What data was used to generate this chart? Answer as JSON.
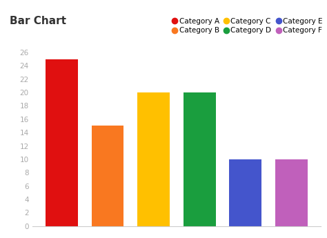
{
  "title": "Bar Chart",
  "categories": [
    "Category A",
    "Category B",
    "Category C",
    "Category D",
    "Category E",
    "Category F"
  ],
  "values": [
    25,
    15,
    20,
    20,
    10,
    10
  ],
  "bar_colors": [
    "#e01010",
    "#f97820",
    "#ffc000",
    "#1a9e3e",
    "#4455cc",
    "#c060bb"
  ],
  "legend_colors": [
    "#e01010",
    "#f97820",
    "#ffc000",
    "#1a9e3e",
    "#4455cc",
    "#c060bb"
  ],
  "legend_labels": [
    "Category A",
    "Category B",
    "Category C",
    "Category D",
    "Category E",
    "Category F"
  ],
  "ylim": [
    0,
    26
  ],
  "yticks": [
    0,
    2,
    4,
    6,
    8,
    10,
    12,
    14,
    16,
    18,
    20,
    22,
    24,
    26
  ],
  "background_color": "#ffffff",
  "title_fontsize": 11,
  "tick_fontsize": 7.5,
  "legend_fontsize": 7.5,
  "bar_width": 0.7
}
